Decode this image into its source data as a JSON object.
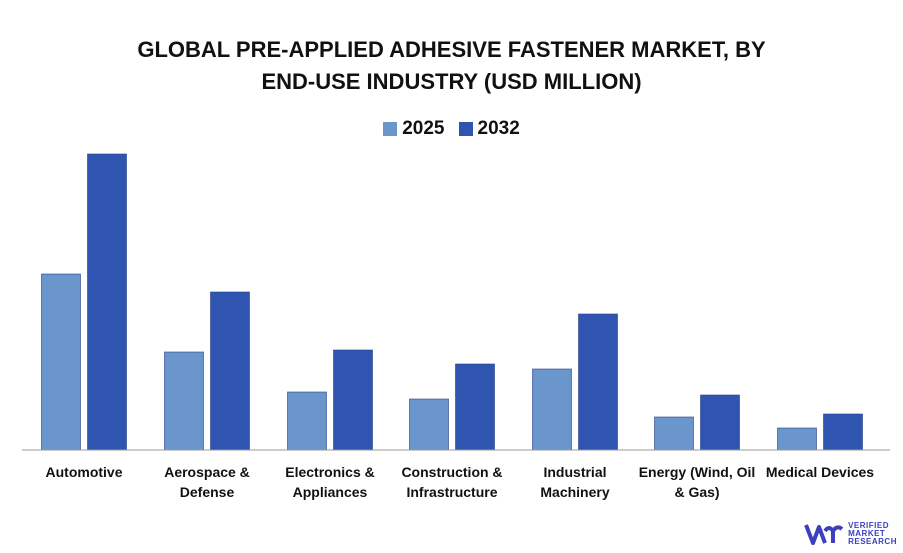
{
  "chart_data": {
    "type": "bar",
    "title": "GLOBAL PRE-APPLIED ADHESIVE FASTENER MARKET, BY END-USE INDUSTRY (USD MILLION)",
    "title_lines": [
      "GLOBAL PRE-APPLIED ADHESIVE FASTENER MARKET, BY",
      "END-USE INDUSTRY (USD MILLION)"
    ],
    "categories": [
      "Automotive",
      "Aerospace & Defense",
      "Electronics & Appliances",
      "Construction & Infrastructure",
      "Industrial Machinery",
      "Energy (Wind, Oil & Gas)",
      "Medical Devices"
    ],
    "category_lines": [
      [
        "Automotive"
      ],
      [
        "Aerospace &",
        "Defense"
      ],
      [
        "Electronics &",
        "Appliances"
      ],
      [
        "Construction &",
        "Infrastructure"
      ],
      [
        "Industrial",
        "Machinery"
      ],
      [
        "Energy (Wind, Oil",
        "& Gas)"
      ],
      [
        "Medical Devices"
      ]
    ],
    "series": [
      {
        "name": "2025",
        "color": "#6b96cc",
        "values": [
          176,
          98,
          58,
          51,
          81,
          33,
          22
        ]
      },
      {
        "name": "2032",
        "color": "#2f55b0",
        "values": [
          296,
          158,
          100,
          86,
          136,
          55,
          36
        ]
      }
    ],
    "ylim": [
      0,
      300
    ],
    "y_axis_shown": false,
    "grid": false,
    "legend_position": "top-center",
    "xlabel": "",
    "ylabel": ""
  },
  "logo": {
    "text_lines": [
      "VERIFIED",
      "MARKET",
      "RESEARCH"
    ],
    "color": "#3b3fc0"
  }
}
